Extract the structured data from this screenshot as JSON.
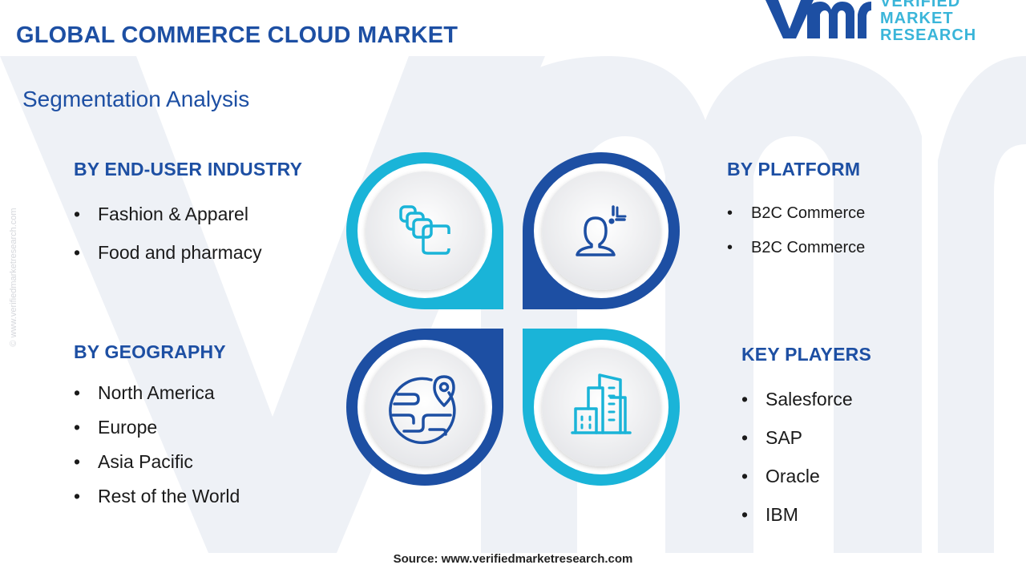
{
  "header": {
    "title": "GLOBAL COMMERCE CLOUD MARKET",
    "subtitle": "Segmentation Analysis"
  },
  "brand": {
    "logo_lines": [
      "VERIFIED",
      "MARKET",
      "RESEARCH"
    ],
    "side_watermark": "© www.verifiedmarketresearch.com",
    "colors": {
      "dark_blue": "#1d4fa3",
      "cyan": "#1ab4d8",
      "heading_blue": "#1d4fa3"
    }
  },
  "segments": {
    "end_user": {
      "heading": "BY END-USER INDUSTRY",
      "items": [
        "Fashion & Apparel",
        "Food and pharmacy"
      ],
      "icon": "layers-icon"
    },
    "platform": {
      "heading": "BY PLATFORM",
      "items": [
        "B2C Commerce",
        "B2C Commerce"
      ],
      "icon": "user-target-icon"
    },
    "geography": {
      "heading": "BY GEOGRAPHY",
      "items": [
        "North America",
        "Europe",
        "Asia Pacific",
        "Rest of the World"
      ],
      "icon": "globe-location-icon"
    },
    "key_players": {
      "heading": "KEY PLAYERS",
      "items": [
        "Salesforce",
        "SAP",
        "Oracle",
        "IBM"
      ],
      "icon": "city-buildings-icon"
    }
  },
  "footer": {
    "source": "Source: www.verifiedmarketresearch.com"
  }
}
